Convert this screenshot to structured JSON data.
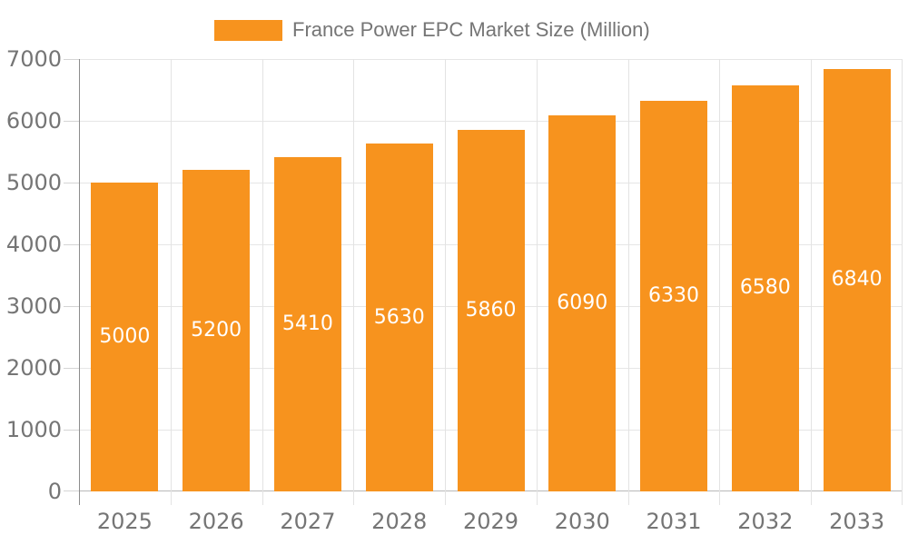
{
  "legend": {
    "label": "France Power EPC Market Size (Million)"
  },
  "chart_data": {
    "type": "bar",
    "title": "France Power EPC Market Size (Million)",
    "series_name": "France Power EPC Market Size (Million)",
    "categories": [
      "2025",
      "2026",
      "2027",
      "2028",
      "2029",
      "2030",
      "2031",
      "2032",
      "2033"
    ],
    "values": [
      5000,
      5200,
      5410,
      5630,
      5860,
      6090,
      6330,
      6580,
      6840
    ],
    "xlabel": "",
    "ylabel": "",
    "ylim": [
      0,
      7000
    ],
    "yticks": [
      0,
      1000,
      2000,
      3000,
      4000,
      5000,
      6000,
      7000
    ],
    "grid": true,
    "legend_position": "top",
    "value_labels_inside": true,
    "bar_color": "#F7931E",
    "value_label_color": "#ffffff",
    "axis_text_color": "#757575",
    "gridline_color": "#e6e6e6",
    "axis_line_color": "#8c8c8c"
  }
}
